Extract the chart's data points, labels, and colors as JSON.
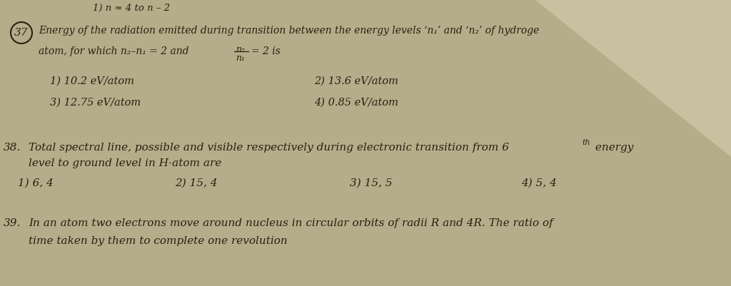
{
  "bg_color": "#b5ad8a",
  "text_color": "#2a1f10",
  "fig_width": 10.24,
  "fig_height": 4.01,
  "top_partial": "1) n ≈ 4 to n – 2",
  "q37_circle": "37",
  "q37_line1": "Energy of the radiation emitted during transition between the energy levels ‘n₁’ and ‘n₂’ of hydroge",
  "q37_cond1": "atom, for which n₂–n₁ = 2 and",
  "q37_frac_num": "n₂",
  "q37_frac_den": "n₁",
  "q37_cond2": "= 2 is",
  "q37_opt1": "1) 10.2 eV/atom",
  "q37_opt2": "2) 13.6 eV/atom",
  "q37_opt3": "3) 12.75 eV/atom",
  "q37_opt4": "4) 0.85 eV/atom",
  "q38_num": "38.",
  "q38_line1a": "Total spectral line, possible and visible respectively during electronic transition from 6",
  "q38_th": "th",
  "q38_line1b": " energy",
  "q38_line2": "level to ground level in H-atom are",
  "q38_opt1": "1) 6, 4",
  "q38_opt2": "2) 15, 4",
  "q38_opt3": "3) 15, 5",
  "q38_opt4": "4) 5, 4",
  "q39_num": "39.",
  "q39_line1": "In an atom two electrons move around nucleus in circular orbits of radii R and 4R. The ratio of",
  "q39_line2": "time taken by them to complete one revolution"
}
